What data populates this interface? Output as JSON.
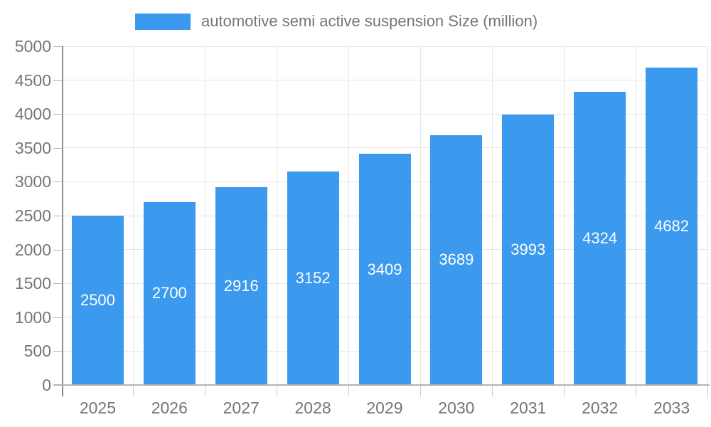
{
  "legend": {
    "label": "automotive semi active suspension Size (million)",
    "swatch_color": "#3B99EE"
  },
  "colors": {
    "bar": "#3B99EE",
    "grid": "#e6e6e6",
    "y_axis_line": "#8c8c8c",
    "x_axis_line": "#b3b3b3",
    "axis_text": "#757575",
    "bar_label_text": "#ffffff",
    "background": "#ffffff"
  },
  "chart_data": {
    "type": "bar",
    "title": "automotive semi active suspension Size (million)",
    "categories": [
      "2025",
      "2026",
      "2027",
      "2028",
      "2029",
      "2030",
      "2031",
      "2032",
      "2033"
    ],
    "values": [
      2500,
      2700,
      2916,
      3152,
      3409,
      3689,
      3993,
      4324,
      4682
    ],
    "value_labels": [
      "2500",
      "2700",
      "2916",
      "3152",
      "3409",
      "3689",
      "3993",
      "4324",
      "4682"
    ],
    "xlabel": "",
    "ylabel": "",
    "ylim": [
      0,
      5000
    ],
    "ytick_step": 500,
    "ytick_labels": [
      "0",
      "500",
      "1000",
      "1500",
      "2000",
      "2500",
      "3000",
      "3500",
      "4000",
      "4500",
      "5000"
    ],
    "grid": true,
    "legend_position": "top"
  }
}
